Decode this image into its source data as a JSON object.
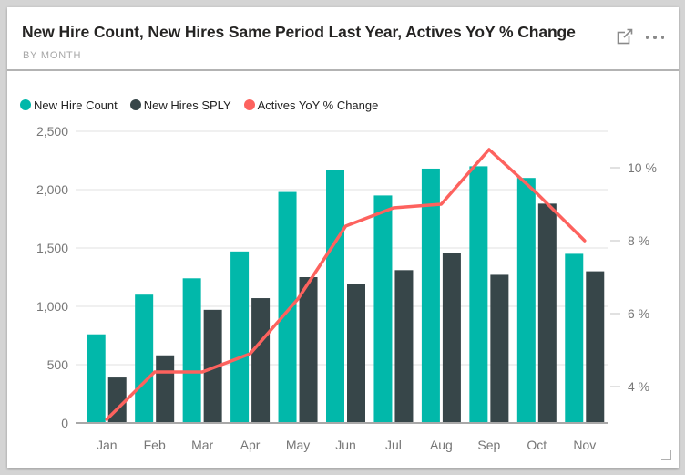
{
  "card": {
    "title": "New Hire Count, New Hires Same Period Last Year, Actives YoY % Change",
    "subtitle": "BY MONTH"
  },
  "icons": {
    "focus_mode": "square-with-diagonal-arrow",
    "more_options": "horizontal-ellipsis",
    "resize_handle": "corner-bracket"
  },
  "legend": {
    "items": [
      {
        "label": "New Hire Count",
        "color": "#01B8AA"
      },
      {
        "label": "New Hires SPLY",
        "color": "#374649"
      },
      {
        "label": "Actives YoY % Change",
        "color": "#FD625E"
      }
    ]
  },
  "chart_data": {
    "type": "combo-clustered-column-line",
    "categories": [
      "Jan",
      "Feb",
      "Mar",
      "Apr",
      "May",
      "Jun",
      "Jul",
      "Aug",
      "Sep",
      "Oct",
      "Nov"
    ],
    "series": [
      {
        "name": "New Hire Count",
        "render": "column",
        "axis": "left",
        "color": "#01B8AA",
        "values": [
          760,
          1100,
          1240,
          1470,
          1980,
          2170,
          1950,
          2180,
          2200,
          2100,
          1450
        ]
      },
      {
        "name": "New Hires SPLY",
        "render": "column",
        "axis": "left",
        "color": "#374649",
        "values": [
          390,
          580,
          970,
          1070,
          1250,
          1190,
          1310,
          1460,
          1270,
          1880,
          1300
        ]
      },
      {
        "name": "Actives YoY % Change",
        "render": "line",
        "axis": "right",
        "color": "#FD625E",
        "values": [
          3.1,
          4.4,
          4.4,
          4.9,
          6.4,
          8.4,
          8.9,
          9.0,
          10.5,
          9.3,
          8.0
        ]
      }
    ],
    "left_axis": {
      "min": 0,
      "max": 2500,
      "tick_values": [
        0,
        500,
        1000,
        1500,
        2000,
        2500
      ],
      "tick_labels": [
        "0",
        "500",
        "1,000",
        "1,500",
        "2,000",
        "2,500"
      ]
    },
    "right_axis": {
      "min": 3,
      "max": 11,
      "tick_values": [
        4,
        6,
        8,
        10
      ],
      "tick_labels": [
        "4 %",
        "6 %",
        "8 %",
        "10 %"
      ]
    },
    "grid": true,
    "legend_position": "top-left"
  },
  "colors": {
    "page_background": "#d4d4d4",
    "card_background": "#ffffff",
    "title_text": "#252423",
    "subtitle_text": "#a6a6a6",
    "axis_text": "#777777",
    "gridline": "#ebebeb",
    "axis_baseline": "#a8a8a8",
    "right_tick_dash": "#e1e1e1",
    "header_divider": "#b3b3b3",
    "icon_gray": "#8a8a8a"
  }
}
